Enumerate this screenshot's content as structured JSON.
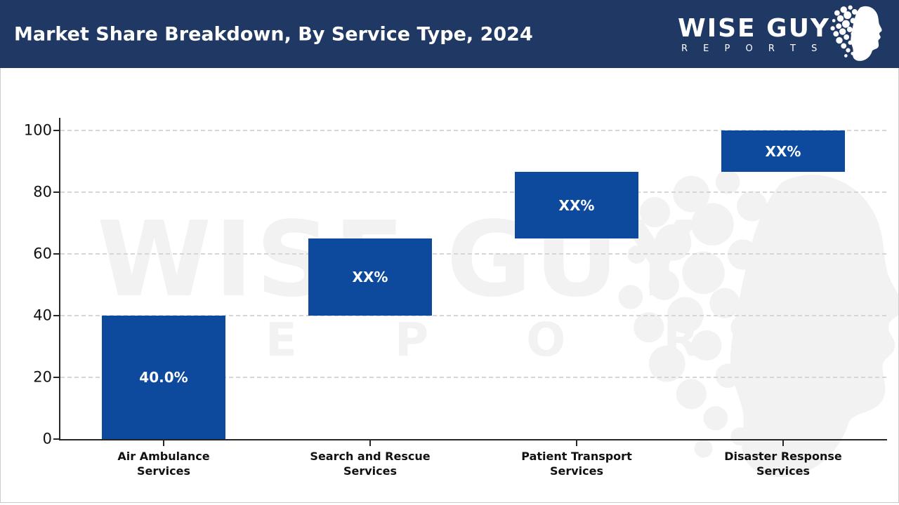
{
  "header": {
    "title": "Market Share Breakdown, By Service Type, 2024",
    "logo": {
      "line1": "WISE GUY",
      "line2": "R E P O R T S"
    }
  },
  "watermark": {
    "line1": "WISE GUY",
    "line2": "R E P O R T S"
  },
  "colors": {
    "header_bg": "#1f3864",
    "bar": "#0d4a9e",
    "bar_label": "#ffffff",
    "grid": "#d6d6d6",
    "axis": "#262626",
    "text": "#111111",
    "watermark": "#f2f2f2"
  },
  "chart_data": {
    "type": "bar",
    "variant": "waterfall",
    "title": "Market Share Breakdown, By Service Type, 2024",
    "categories": [
      "Air Ambulance Services",
      "Search and Rescue Services",
      "Patient Transport Services",
      "Disaster Response Services"
    ],
    "categories_wrapped": [
      [
        "Air Ambulance",
        "Services"
      ],
      [
        "Search and Rescue",
        "Services"
      ],
      [
        "Patient Transport",
        "Services"
      ],
      [
        "Disaster Response",
        "Services"
      ]
    ],
    "segments": [
      {
        "category": "Air Ambulance Services",
        "start": 0,
        "end": 40,
        "label": "40.0%"
      },
      {
        "category": "Search and Rescue Services",
        "start": 40,
        "end": 65,
        "label": "XX%"
      },
      {
        "category": "Patient Transport Services",
        "start": 65,
        "end": 86.5,
        "label": "XX%"
      },
      {
        "category": "Disaster Response Services",
        "start": 86.5,
        "end": 100,
        "label": "XX%"
      }
    ],
    "xlabel": "",
    "ylabel": "",
    "ylim": [
      0,
      100
    ],
    "yticks": [
      0,
      20,
      40,
      60,
      80,
      100
    ],
    "grid": "horizontal-dashed",
    "legend": "none"
  }
}
